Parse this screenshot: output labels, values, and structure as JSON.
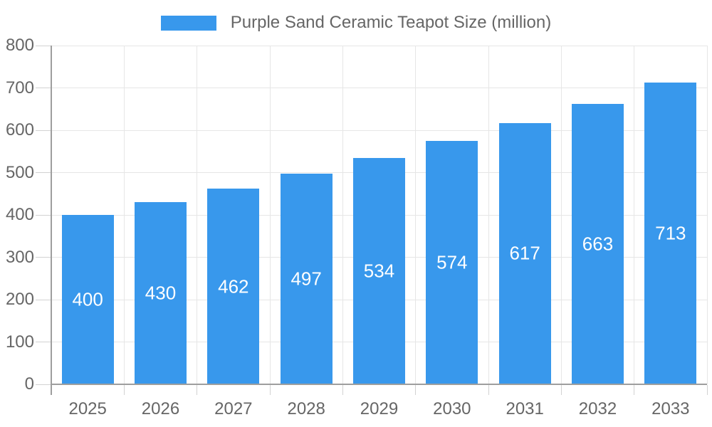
{
  "chart_data": {
    "type": "bar",
    "title": "Purple Sand Ceramic Teapot Size (million)",
    "categories": [
      "2025",
      "2026",
      "2027",
      "2028",
      "2029",
      "2030",
      "2031",
      "2032",
      "2033"
    ],
    "values": [
      400,
      430,
      462,
      497,
      534,
      574,
      617,
      663,
      713
    ],
    "xlabel": "",
    "ylabel": "",
    "ylim": [
      0,
      800
    ],
    "yticks": [
      0,
      100,
      200,
      300,
      400,
      500,
      600,
      700,
      800
    ],
    "grid": true,
    "legend_position": "top",
    "bar_value_labels": "inside-center",
    "colors": {
      "bar": "#3898EC",
      "bar_value_text": "#FFFFFF",
      "axis_line": "#9E9E9E",
      "grid_line": "#E6E6E6",
      "tick_mark": "#D2D2D2",
      "axis_text": "#666666",
      "legend_text": "#666666",
      "background": "#FFFFFF"
    }
  },
  "legend": {
    "label": "Purple Sand Ceramic Teapot Size (million)"
  }
}
